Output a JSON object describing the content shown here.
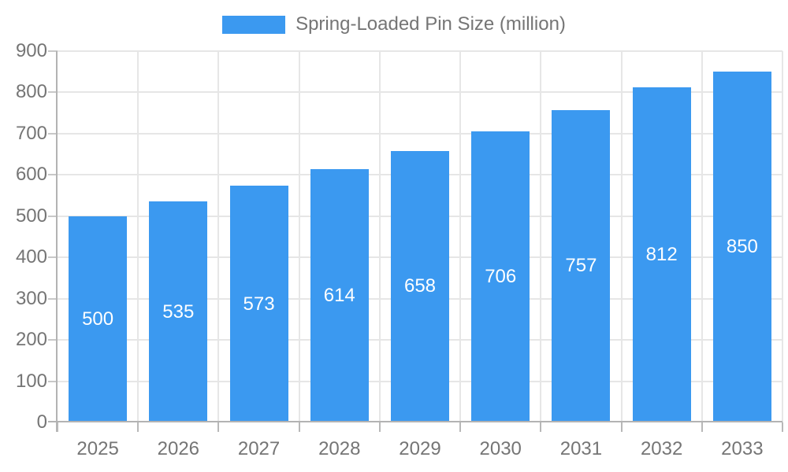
{
  "chart_data": {
    "type": "bar",
    "title": "Spring-Loaded Pin Size (million)",
    "legend_position": "top",
    "categories": [
      "2025",
      "2026",
      "2027",
      "2028",
      "2029",
      "2030",
      "2031",
      "2032",
      "2033"
    ],
    "values": [
      500,
      535,
      573,
      614,
      658,
      706,
      757,
      812,
      850
    ],
    "value_labels_inside_bars": true,
    "xlabel": "",
    "ylabel": "",
    "ylim": [
      0,
      900
    ],
    "yticks": [
      0,
      100,
      200,
      300,
      400,
      500,
      600,
      700,
      800,
      900
    ],
    "grid": true
  },
  "colors": {
    "bar": "#3b99f0",
    "bar_value_label": "#ffffff",
    "axis_text": "#757575",
    "axis_line": "#b3b3b3",
    "y_tick": "#c8c8c8",
    "x_tick": "#b8b8b8",
    "gridline": "#e6e6e6",
    "background": "#ffffff"
  }
}
